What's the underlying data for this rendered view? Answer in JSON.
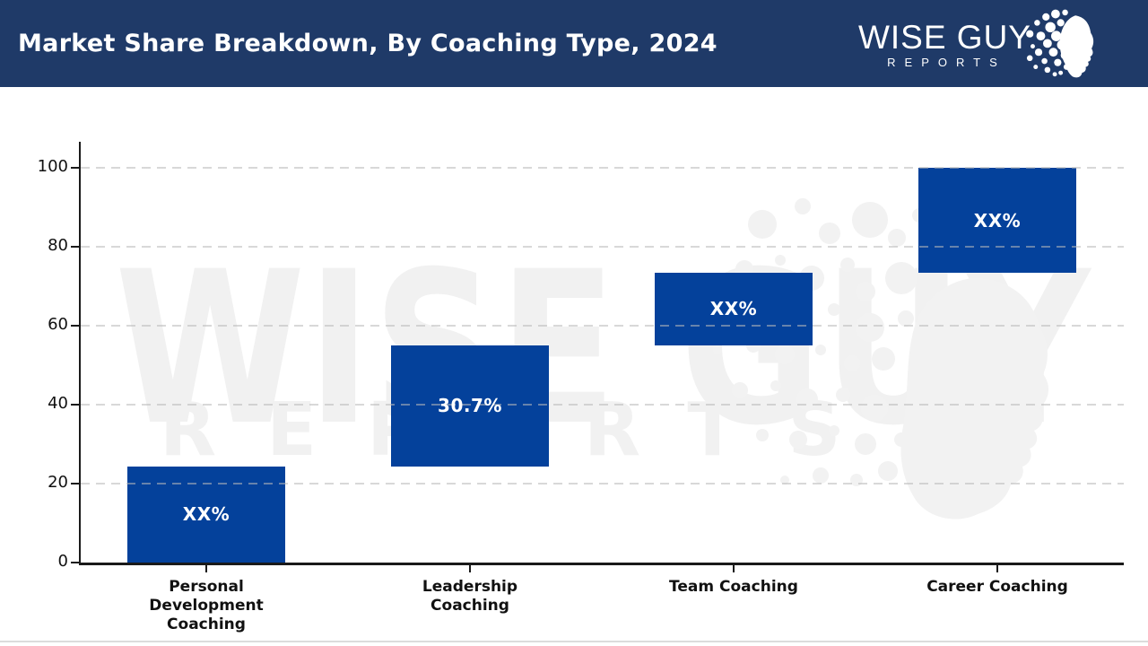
{
  "header": {
    "title": "Market Share Breakdown, By Coaching Type, 2024",
    "logo": {
      "wordmark": "WISE GUY",
      "subtext": "REPORTS"
    }
  },
  "watermark": {
    "wordmark": "WISE GUY",
    "subtext": "REPORTS"
  },
  "colors": {
    "header_bg": "#1f3a68",
    "bar": "#04419b",
    "grid": "#d9d9d9",
    "axis": "#1a1a1a",
    "bar_label_text": "#ffffff",
    "watermark": "#f1f1f1"
  },
  "chart_data": {
    "type": "bar",
    "variant": "waterfall-floating-bars",
    "title": "Market Share Breakdown, By Coaching Type, 2024",
    "xlabel": "",
    "ylabel": "",
    "categories": [
      "Personal Development Coaching",
      "Leadership Coaching",
      "Team Coaching",
      "Career Coaching"
    ],
    "category_lines": [
      [
        "Personal",
        "Development",
        "Coaching"
      ],
      [
        "Leadership",
        "Coaching"
      ],
      [
        "Team Coaching"
      ],
      [
        "Career Coaching"
      ]
    ],
    "bars": [
      {
        "category": "Personal Development Coaching",
        "start": 0,
        "end": 24.4,
        "value": 24.4,
        "label": "XX%"
      },
      {
        "category": "Leadership Coaching",
        "start": 24.4,
        "end": 55.1,
        "value": 30.7,
        "label": "30.7%"
      },
      {
        "category": "Team Coaching",
        "start": 55.1,
        "end": 73.4,
        "value": 18.3,
        "label": "XX%"
      },
      {
        "category": "Career Coaching",
        "start": 73.4,
        "end": 100,
        "value": 26.6,
        "label": "XX%"
      }
    ],
    "ylim": [
      0,
      100
    ],
    "yticks": [
      "0",
      "20",
      "40",
      "60",
      "80",
      "100"
    ],
    "grid": "horizontal-dashed",
    "legend": "none"
  }
}
